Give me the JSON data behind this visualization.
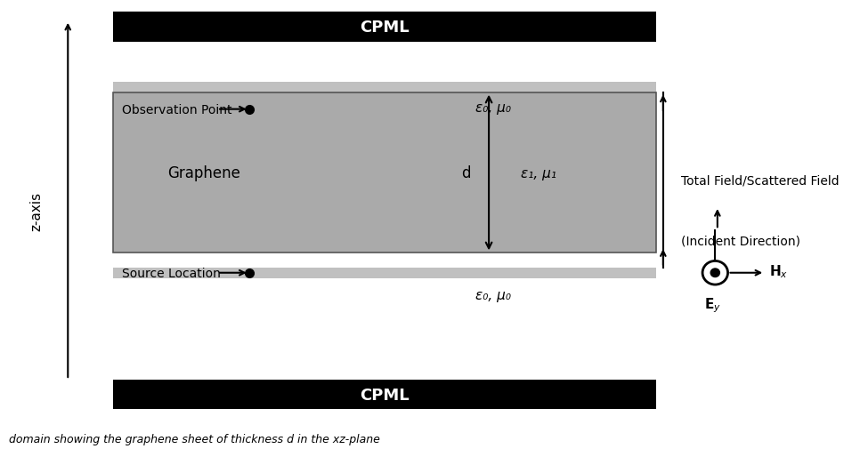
{
  "background_color": "#ffffff",
  "cpml_color": "#000000",
  "cpml_text_color": "#ffffff",
  "graphene_color": "#aaaaaa",
  "thin_layer_color": "#c0c0c0",
  "fig_width": 9.66,
  "fig_height": 5.06,
  "cpml_label": "CPML",
  "graphene_label": "Graphene",
  "zaxis_label": "z-axis",
  "obs_label": "Observation Point",
  "src_label": "Source Location",
  "tf_sf_label": "Total Field/Scattered Field",
  "inc_dir_label": "(Incident Direction)",
  "eps0_mu0_label_top": "ε₀, μ₀",
  "eps1_mu1_label": "ε₁, μ₁",
  "eps0_mu0_label_bot": "ε₀, μ₀",
  "d_label": "d",
  "caption": "domain showing the graphene sheet of thickness d in the xz-plane",
  "xlim": [
    0,
    19
  ],
  "ylim": [
    0,
    10
  ]
}
